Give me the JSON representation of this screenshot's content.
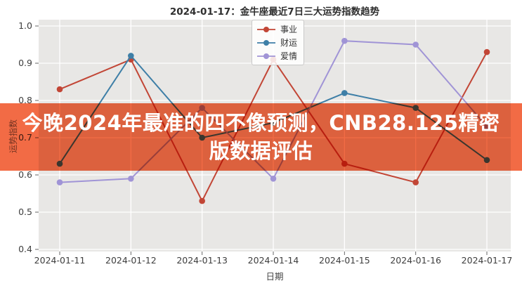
{
  "title": "2024-01-17：金牛座最近7日三大运势指数趋势",
  "banner": {
    "lines": [
      "今晚2024年最准的四不像预测，CNB28.125精密",
      "版数据评估"
    ],
    "color": "#f26b45",
    "text_color": "#ffffff"
  },
  "chart_data": {
    "type": "line",
    "title": "2024-01-17：金牛座最近7日三大运势指数趋势",
    "xlabel": "日期",
    "ylabel": "运势指数",
    "categories": [
      "2024-01-11",
      "2024-01-12",
      "2024-01-13",
      "2024-01-14",
      "2024-01-15",
      "2024-01-16",
      "2024-01-17"
    ],
    "series": [
      {
        "name": "事业",
        "color": "#c24636",
        "values": [
          0.83,
          0.91,
          0.53,
          0.91,
          0.63,
          0.58,
          0.93
        ]
      },
      {
        "name": "财运",
        "color": "#3e7fa7",
        "values": [
          0.63,
          0.92,
          0.7,
          0.74,
          0.82,
          0.78,
          0.64
        ]
      },
      {
        "name": "爱情",
        "color": "#a094d6",
        "values": [
          0.58,
          0.59,
          0.78,
          0.59,
          0.96,
          0.95,
          0.73
        ]
      }
    ],
    "ylim": [
      0.4,
      1.0
    ],
    "yticks": [
      1.0,
      0.9,
      0.8,
      0.7,
      0.6,
      0.5,
      0.4
    ],
    "grid": true,
    "legend_position": "top-center",
    "plot_bg": "#e8e7e5",
    "grid_color": "#ffffff"
  }
}
